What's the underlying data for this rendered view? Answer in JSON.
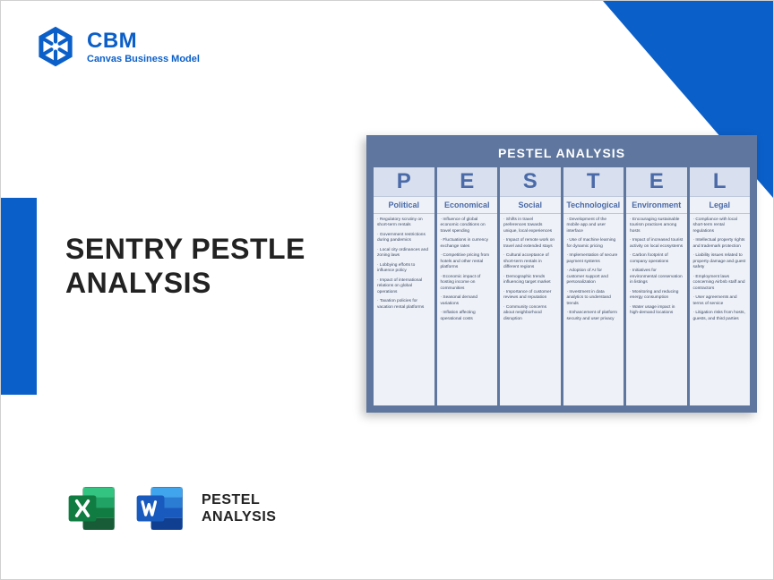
{
  "logo": {
    "brand": "CBM",
    "tagline": "Canvas Business Model"
  },
  "title_line1": "SENTRY PESTLE",
  "title_line2": "ANALYSIS",
  "bottom_label_line1": "PESTEL",
  "bottom_label_line2": "ANALYSIS",
  "card": {
    "title": "PESTEL ANALYSIS",
    "columns": [
      {
        "letter": "P",
        "category": "Political",
        "items": [
          "Regulatory scrutiny on short-term rentals",
          "Government restrictions during pandemics",
          "Local city ordinances and zoning laws",
          "Lobbying efforts to influence policy",
          "Impact of international relations on global operations",
          "Taxation policies for vacation rental platforms"
        ]
      },
      {
        "letter": "E",
        "category": "Economical",
        "items": [
          "Influence of global economic conditions on travel spending",
          "Fluctuations in currency exchange rates",
          "Competitive pricing from hotels and other rental platforms",
          "Economic impact of hosting income on communities",
          "Seasonal demand variations",
          "Inflation affecting operational costs"
        ]
      },
      {
        "letter": "S",
        "category": "Social",
        "items": [
          "Shifts in travel preferences towards unique, local experiences",
          "Impact of remote work on travel and extended stays",
          "Cultural acceptance of short-term rentals in different regions",
          "Demographic trends influencing target market",
          "Importance of customer reviews and reputation",
          "Community concerns about neighborhood disruption"
        ]
      },
      {
        "letter": "T",
        "category": "Technological",
        "items": [
          "Development of the mobile app and user interface",
          "Use of machine learning for dynamic pricing",
          "Implementation of secure payment systems",
          "Adoption of AI for customer support and personalization",
          "Investment in data analytics to understand trends",
          "Enhancement of platform security and user privacy"
        ]
      },
      {
        "letter": "E",
        "category": "Environment",
        "items": [
          "Encouraging sustainable tourism practices among hosts",
          "Impact of increased tourist activity on local ecosystems",
          "Carbon footprint of company operations",
          "Initiatives for environmental conservation in listings",
          "Monitoring and reducing energy consumption",
          "Water usage impact in high-demand locations"
        ]
      },
      {
        "letter": "L",
        "category": "Legal",
        "items": [
          "Compliance with local short-term rental regulations",
          "Intellectual property rights and trademark protection",
          "Liability issues related to property damage and guest safety",
          "Employment laws concerning Airbnb staff and contractors",
          "User agreements and terms of service",
          "Litigation risks from hosts, guests, and third parties"
        ]
      }
    ]
  },
  "colors": {
    "accent": "#0b5fc8",
    "card_bg": "#5f779f",
    "col_bg": "#eef1f7",
    "letter_bg": "#d8e0ef",
    "text_heading": "#4a6aa8"
  }
}
